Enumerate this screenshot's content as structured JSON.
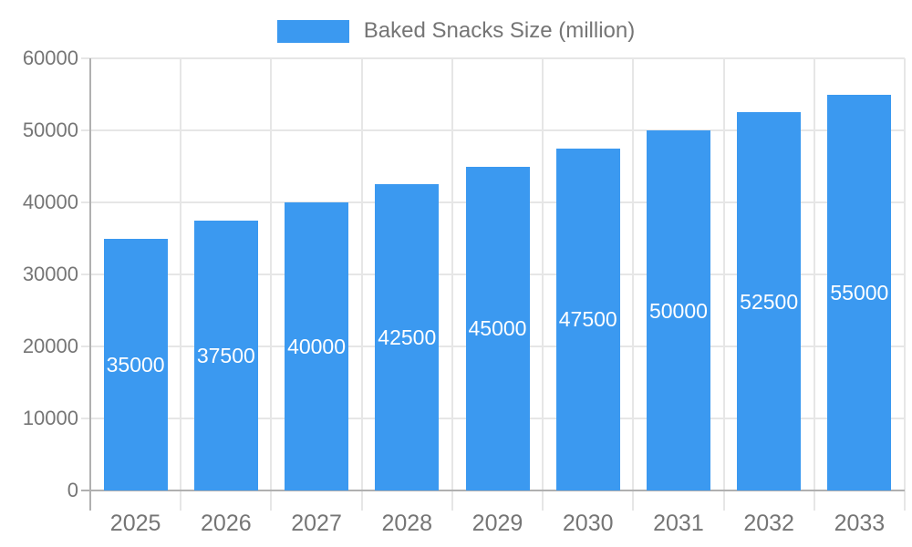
{
  "legend": {
    "label": "Baked Snacks Size (million)"
  },
  "chart_data": {
    "type": "bar",
    "title": "",
    "series_name": "Baked Snacks Size (million)",
    "categories": [
      "2025",
      "2026",
      "2027",
      "2028",
      "2029",
      "2030",
      "2031",
      "2032",
      "2033"
    ],
    "values": [
      35000,
      37500,
      40000,
      42500,
      45000,
      47500,
      50000,
      52500,
      55000
    ],
    "bar_value_labels": [
      "35000",
      "37500",
      "40000",
      "42500",
      "45000",
      "47500",
      "50000",
      "52500",
      "55000"
    ],
    "xlabel": "",
    "ylabel": "",
    "ylim": [
      0,
      60000
    ],
    "yticks": [
      0,
      10000,
      20000,
      30000,
      40000,
      50000,
      60000
    ],
    "ytick_labels": [
      "0",
      "10000",
      "20000",
      "30000",
      "40000",
      "50000",
      "60000"
    ],
    "grid": true,
    "legend_position": "top",
    "colors": {
      "bar": "#3b99f0",
      "bar_label_text": "#ffffff",
      "axis_text": "#757575",
      "gridline": "#e6e6e6",
      "axis_line": "#b0b0b0"
    }
  }
}
